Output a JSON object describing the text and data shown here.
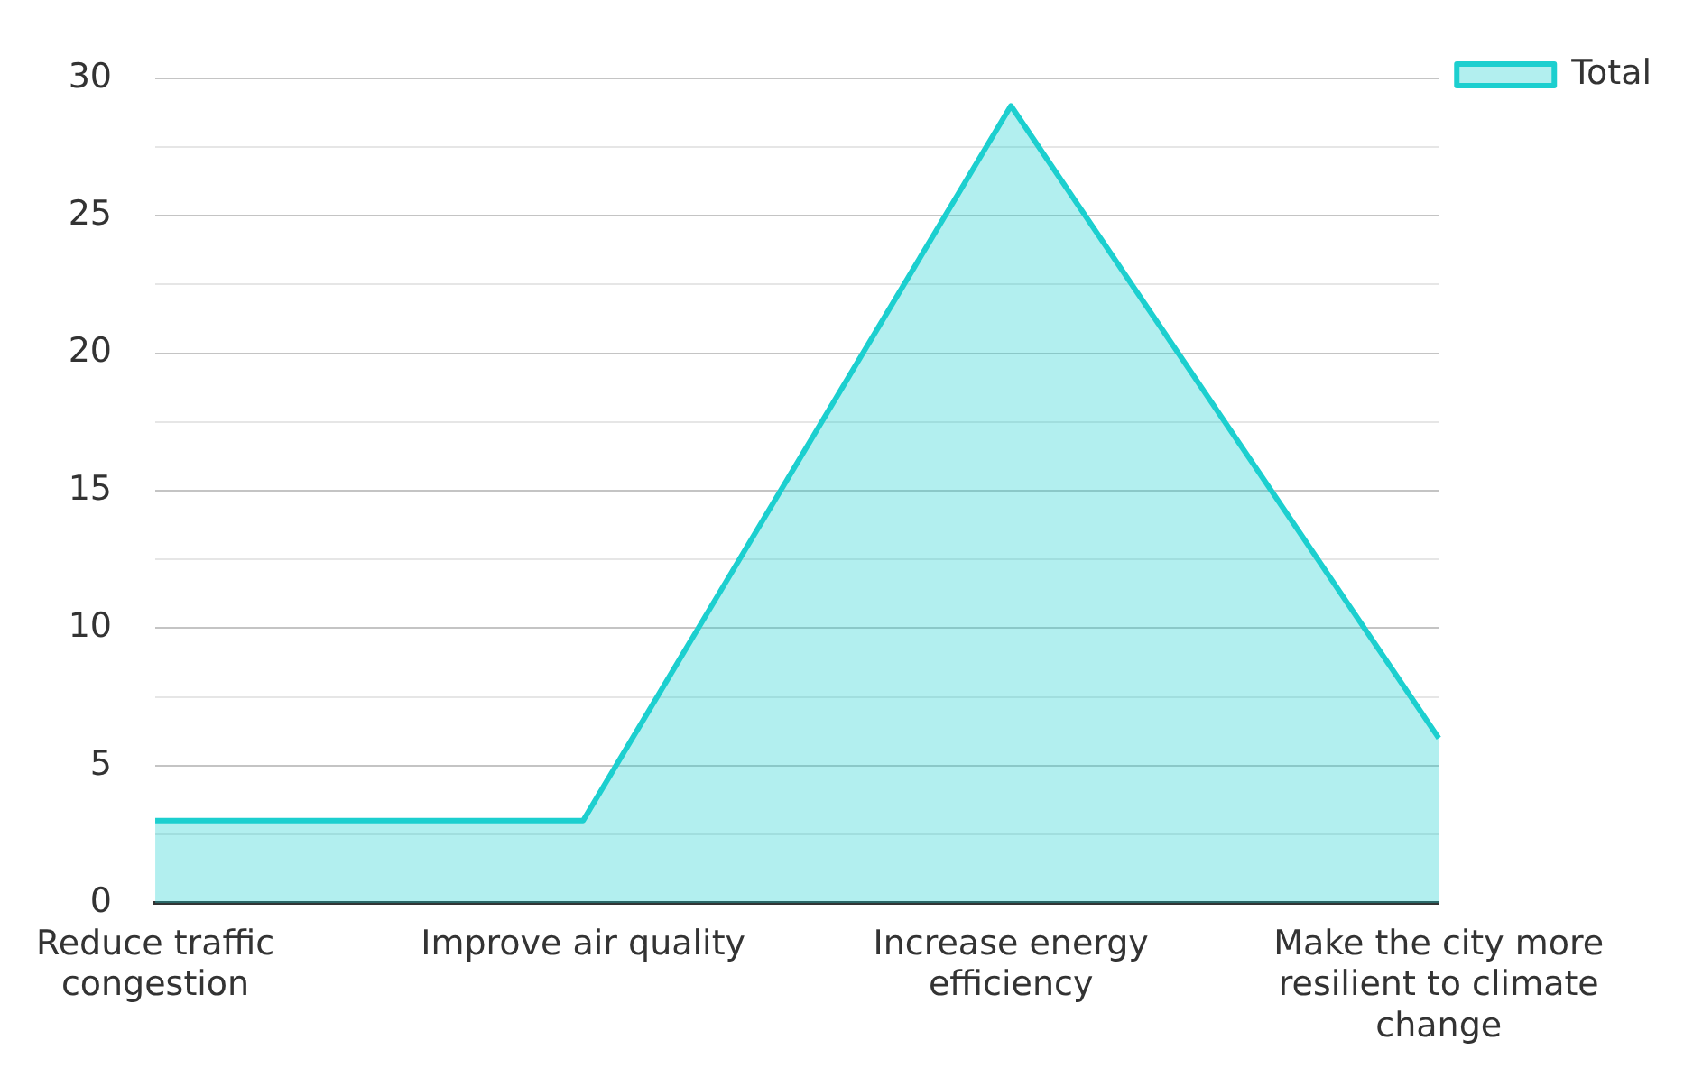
{
  "chart_data": {
    "type": "area",
    "categories": [
      "Reduce traffic congestion",
      "Improve air quality",
      "Increase energy efficiency",
      "Make the city more resilient to climate change"
    ],
    "series": [
      {
        "name": "Total",
        "color": "#1ccfcf",
        "values": [
          3,
          3,
          29,
          6
        ]
      }
    ],
    "ylim": [
      0,
      30
    ],
    "yticks": [
      0,
      {
        "value": 2.5,
        "label": null
      },
      5,
      {
        "value": 7.5,
        "label": null
      },
      10,
      {
        "value": 12.5,
        "label": null
      },
      15,
      {
        "value": 17.5,
        "label": null
      },
      20,
      {
        "value": 22.5,
        "label": null
      },
      25,
      {
        "value": 27.5,
        "label": null
      },
      30
    ],
    "grid": "y",
    "legend": "top right",
    "marker": "none"
  }
}
